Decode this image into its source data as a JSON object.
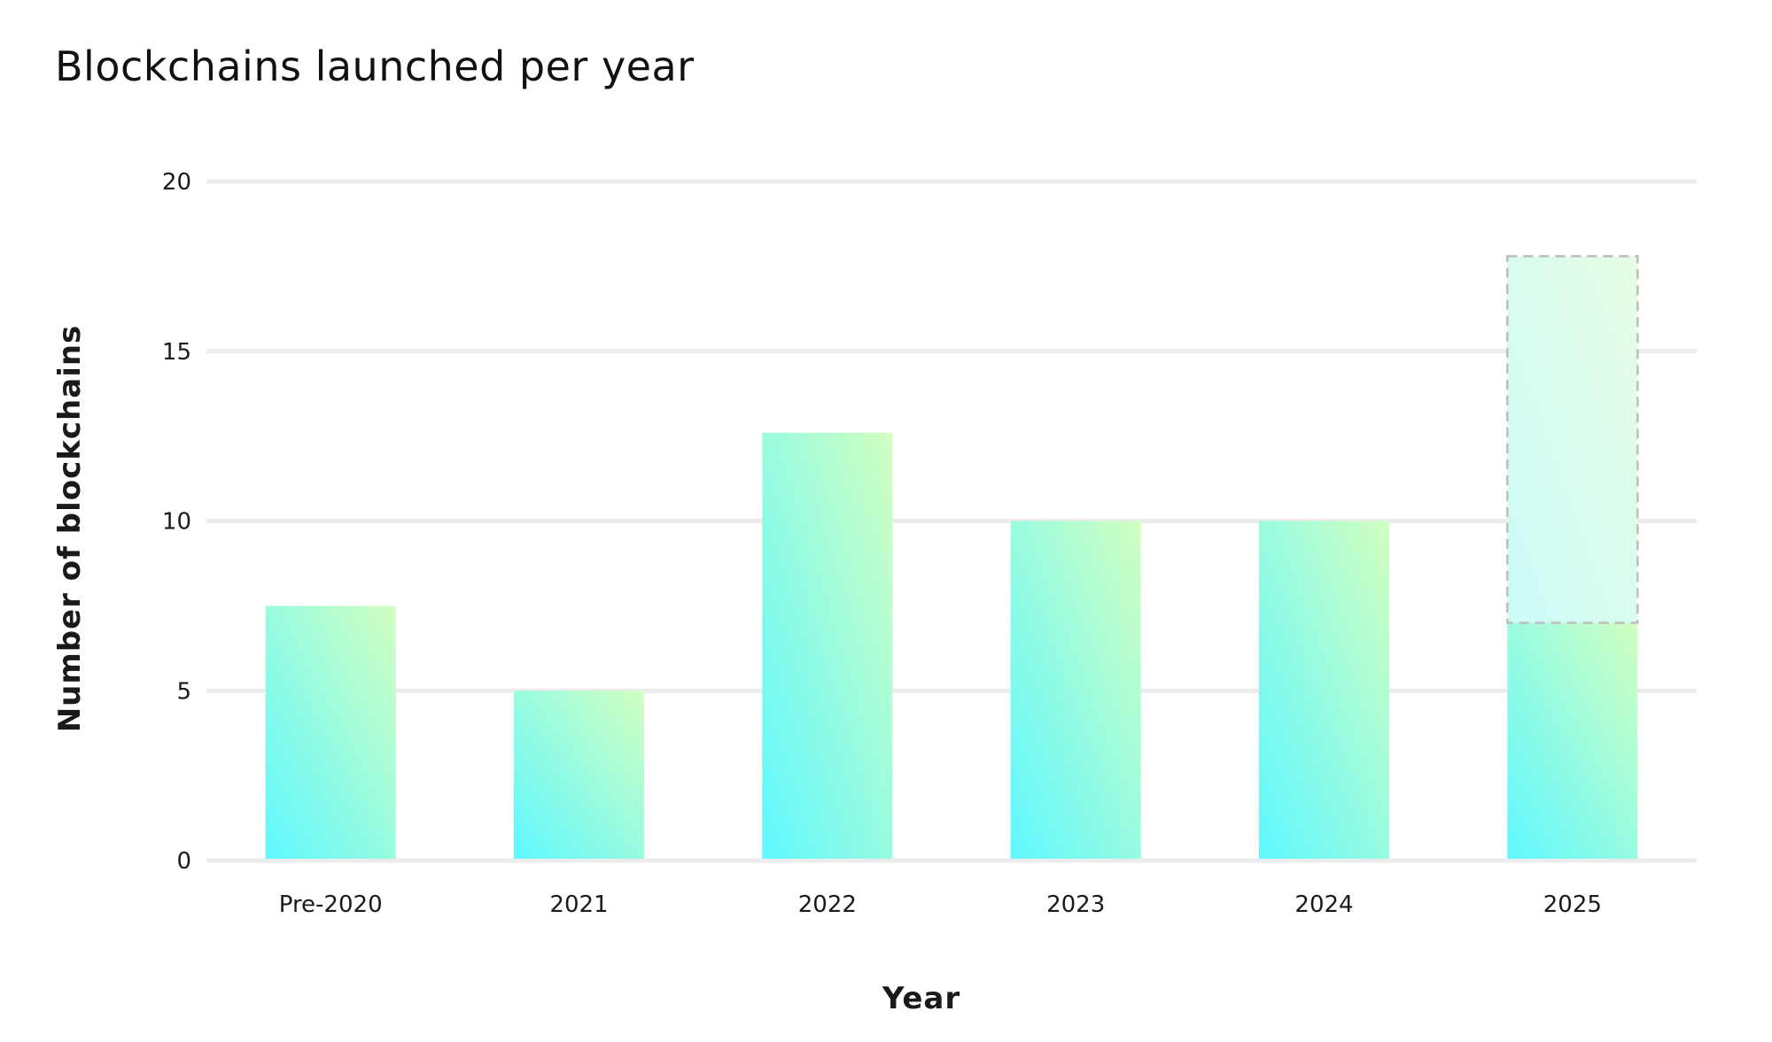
{
  "title": "Blockchains launched per year",
  "chart_data": {
    "type": "bar",
    "title": "Blockchains launched per year",
    "xlabel": "Year",
    "ylabel": "Number of blockchains",
    "categories": [
      "Pre-2020",
      "2021",
      "2022",
      "2023",
      "2024",
      "2025"
    ],
    "values": [
      7.5,
      5,
      12.6,
      10,
      10,
      7
    ],
    "projected": [
      null,
      null,
      null,
      null,
      null,
      17.8
    ],
    "ylim": [
      0,
      20
    ],
    "yticks": [
      0,
      5,
      10,
      15,
      20
    ],
    "grid": true,
    "legend": "none",
    "colors": {
      "bar_bottom": "#5ff8ff",
      "bar_top": "#d2ffc0",
      "projection_fill_top": "#e6fde4",
      "projection_fill_bottom": "#ccfbf8",
      "projection_border": "#bdbdbd",
      "grid": "#ececec"
    }
  }
}
